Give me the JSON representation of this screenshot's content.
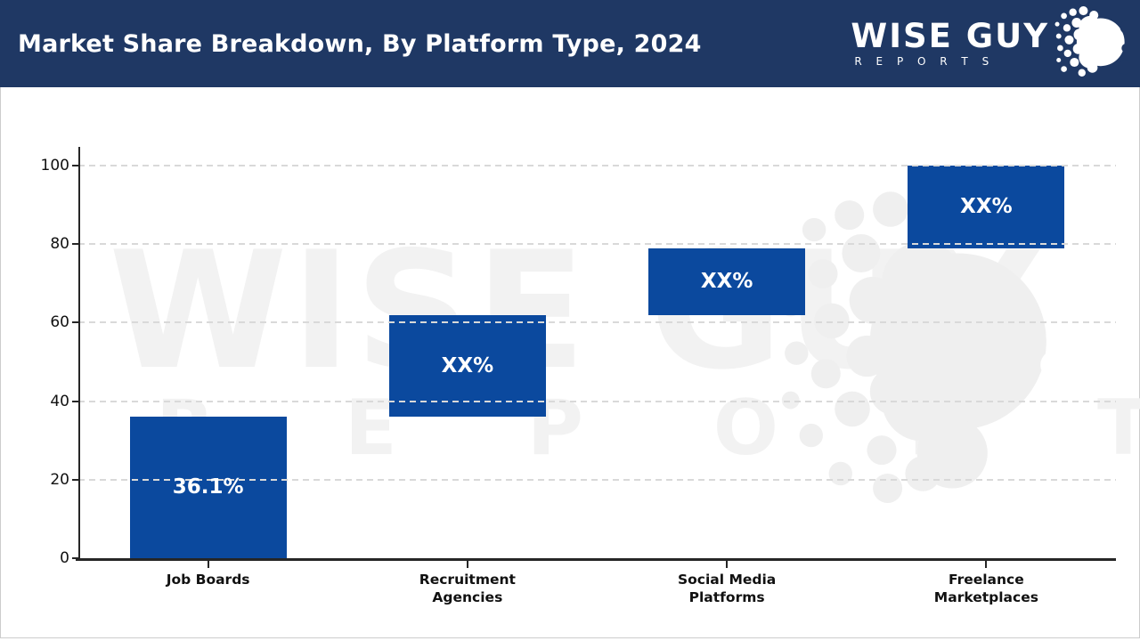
{
  "header": {
    "title": "Market Share Breakdown, By Platform Type, 2024",
    "logo": {
      "line1": "WISE GUY",
      "line2": "R E P O R T S"
    }
  },
  "watermark": {
    "line1": "WISE GUY",
    "line2": "R E P O R T S"
  },
  "chart_data": {
    "type": "bar",
    "subtype": "waterfall",
    "title": "Market Share Breakdown, By Platform Type, 2024",
    "categories": [
      "Job Boards",
      "Recruitment Agencies",
      "Social Media Platforms",
      "Freelance Marketplaces"
    ],
    "segments": [
      {
        "category": "Job Boards",
        "label_lines": [
          "Job Boards"
        ],
        "start": 0,
        "end": 36.1,
        "value_label": "36.1%"
      },
      {
        "category": "Recruitment Agencies",
        "label_lines": [
          "Recruitment",
          "Agencies"
        ],
        "start": 36.1,
        "end": 62,
        "value_label": "XX%"
      },
      {
        "category": "Social Media Platforms",
        "label_lines": [
          "Social Media",
          "Platforms"
        ],
        "start": 62,
        "end": 79,
        "value_label": "XX%"
      },
      {
        "category": "Freelance Marketplaces",
        "label_lines": [
          "Freelance",
          "Marketplaces"
        ],
        "start": 79,
        "end": 100,
        "value_label": "XX%"
      }
    ],
    "ylim": [
      0,
      100
    ],
    "yticks": [
      0,
      20,
      40,
      60,
      80,
      100
    ],
    "grid": true,
    "legend": false,
    "xlabel": "",
    "ylabel": "",
    "bar_color": "#0b499e",
    "header_color": "#1f3864",
    "watermark_color": "#f2f2f2"
  }
}
